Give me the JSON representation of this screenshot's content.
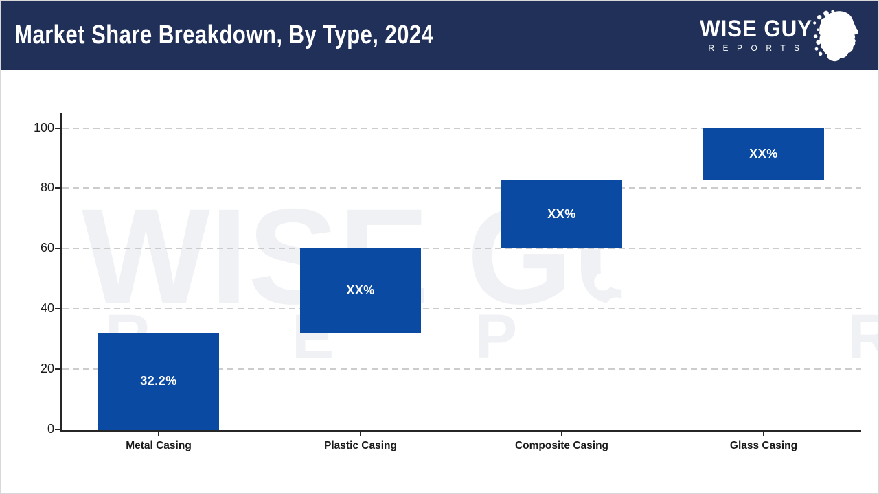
{
  "header": {
    "title": "Market Share Breakdown, By Type, 2024",
    "logo": {
      "line1": "WISE GUY",
      "line2": "REPORTS"
    }
  },
  "watermark": {
    "line1": "WISE GUY",
    "line2": "R E P O R T S"
  },
  "colors": {
    "header_bg": "#213058",
    "bar": "#0b4aa2",
    "grid": "#cccccc",
    "axis": "#262626",
    "watermark": "#f0f1f4",
    "title_text": "#ffffff",
    "bar_label_text": "#ffffff"
  },
  "chart_data": {
    "type": "bar",
    "subtype": "waterfall",
    "title": "Market Share Breakdown, By Type, 2024",
    "categories": [
      "Metal Casing",
      "Plastic Casing",
      "Composite Casing",
      "Glass Casing"
    ],
    "bars": [
      {
        "category": "Metal Casing",
        "start": 0,
        "end": 32.2,
        "label": "32.2%"
      },
      {
        "category": "Plastic Casing",
        "start": 32.2,
        "end": 60,
        "label": "XX%"
      },
      {
        "category": "Composite Casing",
        "start": 60,
        "end": 82.8,
        "label": "XX%"
      },
      {
        "category": "Glass Casing",
        "start": 82.8,
        "end": 100,
        "label": "XX%"
      }
    ],
    "xlabel": "",
    "ylabel": "",
    "ylim": [
      0,
      100
    ],
    "yticks": [
      0,
      20,
      40,
      60,
      80,
      100
    ],
    "units": "percent",
    "grid": "horizontal-dashed",
    "legend": "none"
  }
}
